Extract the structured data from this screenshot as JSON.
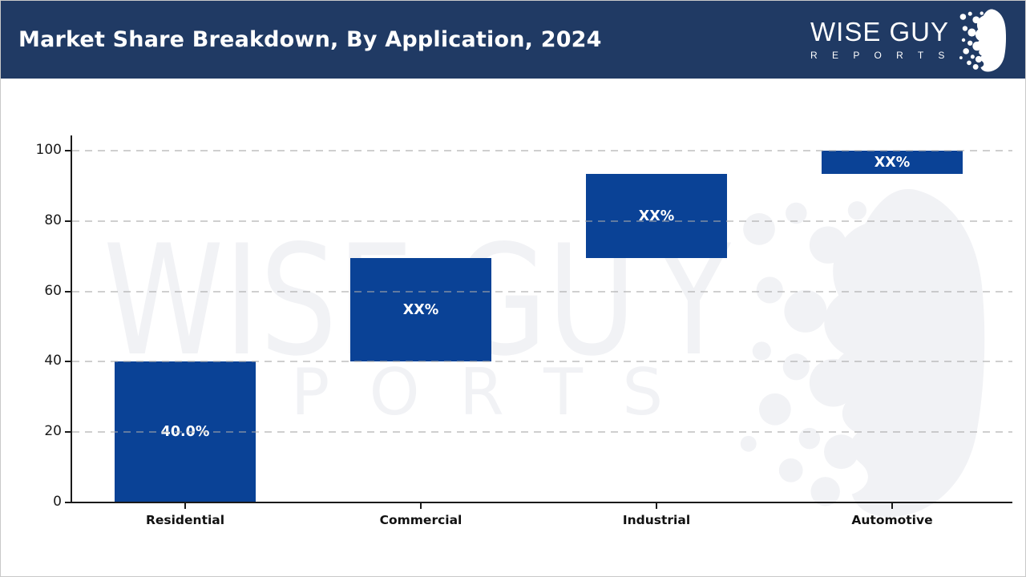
{
  "header": {
    "title": "Market Share Breakdown, By Application, 2024",
    "logo": {
      "line1": "WISE GUY",
      "line2": "R E P O R T S",
      "icon": "face-dots-icon"
    }
  },
  "watermark": {
    "line1": "WISE GU",
    "line1b": "Y",
    "line2": "P O R T S",
    "icon": "face-dots-watermark"
  },
  "colors": {
    "header_bg": "#203a64",
    "bar": "#0a4296",
    "bar_label": "#ffffff",
    "watermark": "#f1f2f5",
    "grid": "#a8a8a8",
    "axis": "#1a1a1a",
    "page_bg": "#ffffff"
  },
  "chart_data": {
    "type": "waterfall",
    "title": "Market Share Breakdown, By Application, 2024",
    "xlabel": "",
    "ylabel": "",
    "categories": [
      "Residential",
      "Commercial",
      "Industrial",
      "Automotive"
    ],
    "segments": [
      {
        "category": "Residential",
        "start": 0,
        "end": 40,
        "label": "40.0%"
      },
      {
        "category": "Commercial",
        "start": 40,
        "end": 69.5,
        "label": "XX%"
      },
      {
        "category": "Industrial",
        "start": 69.5,
        "end": 93.3,
        "label": "XX%"
      },
      {
        "category": "Automotive",
        "start": 93.3,
        "end": 100,
        "label": "XX%"
      }
    ],
    "values_estimated": [
      40.0,
      29.5,
      23.8,
      6.7
    ],
    "cumulative_total": 100,
    "y_ticks": [
      0,
      20,
      40,
      60,
      80,
      100
    ],
    "y_tick_labels": [
      "0",
      "20",
      "40",
      "60",
      "80",
      "100"
    ],
    "ylim": [
      0,
      104
    ],
    "grid": "horizontal dashed, drawn over bars",
    "legend": "none",
    "bar_color": "#0a4296",
    "label_color": "#ffffff"
  }
}
